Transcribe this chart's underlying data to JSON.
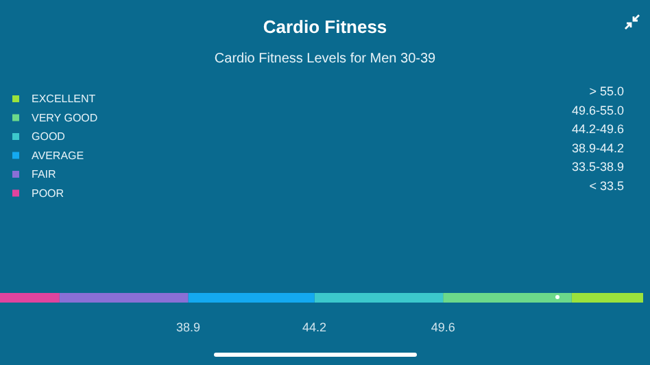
{
  "chart_data": {
    "type": "bar",
    "title": "Cardio Fitness",
    "subtitle": "Cardio Fitness Levels for Men 30-39",
    "orientation": "horizontal",
    "categories": [
      null
    ],
    "series": [
      {
        "name": "EXCELLENT",
        "color": "#9be23c",
        "values": [
          3.0
        ],
        "base": [
          55.0
        ]
      },
      {
        "name": "VERY GOOD",
        "color": "#6cd98a",
        "values": [
          5.4
        ],
        "base": [
          49.6
        ]
      },
      {
        "name": "GOOD",
        "color": "#3cc8cc",
        "values": [
          5.4
        ],
        "base": [
          44.2
        ]
      },
      {
        "name": "AVERAGE",
        "color": "#14a9f0",
        "values": [
          5.3
        ],
        "base": [
          38.9
        ]
      },
      {
        "name": "FAIR",
        "color": "#8a6fd6",
        "values": [
          5.4
        ],
        "base": [
          33.5
        ]
      },
      {
        "name": "POOR",
        "color": "#e0449e",
        "values": [
          2.5
        ],
        "base": [
          31.0
        ]
      }
    ],
    "annotations": [
      "> 55.0",
      "49.6-55.0",
      "44.2-49.6",
      "38.9-44.2",
      "33.5-38.9",
      "< 33.5"
    ],
    "xlim": [
      31,
      58
    ],
    "xticks": [
      38.9,
      44.2,
      49.6
    ],
    "tick_labels": "x",
    "legend": "top left",
    "grid": false
  }
}
